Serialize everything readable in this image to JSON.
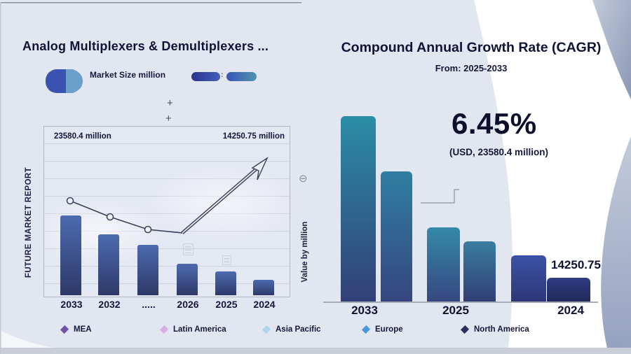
{
  "icons": {
    "plus": "+",
    "minus_circle": "⊖",
    "colon": ":"
  },
  "left_panel": {
    "title": "Analog Multiplexers & Demultiplexers ...",
    "icon_label": "Market Size million",
    "watermark_vertical": "FUTURE MARKET REPORT",
    "value_axis_label": "Value by million",
    "chart": {
      "top_left_value": "23580.4 million",
      "top_right_value": "14250.75 million"
    }
  },
  "right_panel": {
    "title": "Compound Annual Growth Rate (CAGR)",
    "subtitle": "From: 2025-2033",
    "cagr": "6.45%",
    "cagr_detail": "(USD, 23580.4 million)",
    "value_label": "14250.75"
  },
  "legend": {
    "items": [
      {
        "label": "MEA",
        "color": "#6f52a5"
      },
      {
        "label": "Latin America",
        "color": "#d9aee0"
      },
      {
        "label": "Asia Pacific",
        "color": "#a9d6ec"
      },
      {
        "label": "Europe",
        "color": "#4a9ad6"
      },
      {
        "label": "North America",
        "color": "#2a2f5f"
      }
    ]
  },
  "chart_data": [
    {
      "id": "market-size-by-year",
      "type": "bar",
      "title": "Market Size million",
      "categories": [
        "2033",
        "2032",
        ".....",
        "2026",
        "2025",
        "2024"
      ],
      "values_relative_height": [
        1.0,
        0.763,
        0.632,
        0.395,
        0.298,
        0.193
      ],
      "labeled_values": {
        "2033": 23580.4,
        "2024": 14250.75
      },
      "unit": "USD million",
      "ylabel": "Value by million",
      "grid": true,
      "bar_gradient": [
        "#4d6bb0",
        "#2e3968"
      ],
      "overlay": "trend line with 3 circle markers dipping left-to-right, then outlined arrow rising to top-right",
      "legend_position": "bottom"
    },
    {
      "id": "cagr-comparison",
      "type": "bar",
      "title": "Compound Annual Growth Rate (CAGR)",
      "subtitle": "From: 2025-2033",
      "categories": [
        "2033",
        "2025",
        "2024"
      ],
      "series": [
        {
          "name": "series-1",
          "values_relative_height": [
            1.0,
            0.402,
            0.252
          ]
        },
        {
          "name": "series-2",
          "values_relative_height": [
            0.703,
            0.327,
            0.132
          ]
        }
      ],
      "cagr_percent": 6.45,
      "cagr_base_value": "USD 23580.4 million",
      "labeled_values": {
        "2024": 14250.75
      },
      "bar_gradients": [
        [
          "#2b8da6",
          "#323f78"
        ],
        [
          "#2f7fa2",
          "#36457f"
        ],
        [
          "#338aa9",
          "#36467f"
        ],
        [
          "#3a7da0",
          "#313d74"
        ],
        [
          "#3c52a6",
          "#2c3776"
        ],
        [
          "#2e3c82",
          "#222a58"
        ]
      ],
      "grid": false
    }
  ]
}
